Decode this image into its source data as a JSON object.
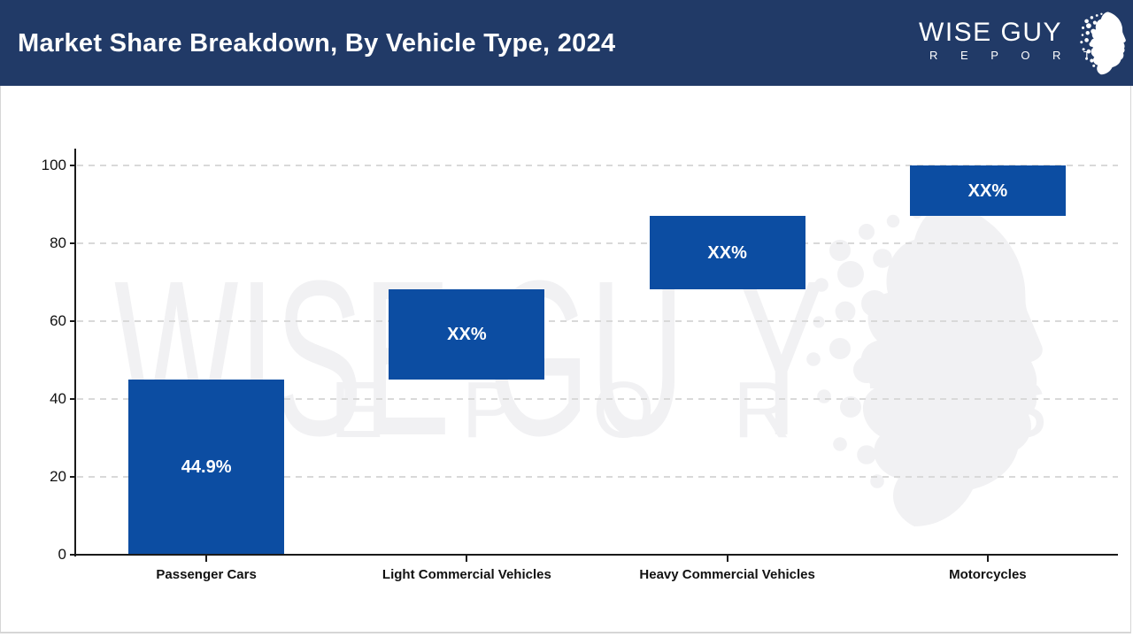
{
  "header": {
    "title": "Market Share Breakdown, By Vehicle Type, 2024",
    "logo": {
      "line1": "WISE GUY",
      "line2": "R E P O R T S"
    }
  },
  "watermark": {
    "line1_part1": "WISE GU",
    "line1_part2": "Y",
    "line2": "R E P O R T S"
  },
  "colors": {
    "header_bg": "#213a67",
    "bar": "#0c4da2",
    "bar_label": "#ffffff",
    "watermark": "#f1f1f3",
    "gridline": "#d9d9d9",
    "axis": "#1a1a1a"
  },
  "chart_data": {
    "type": "bar",
    "subtype": "waterfall",
    "title": "Market Share Breakdown, By Vehicle Type, 2024",
    "xlabel": "",
    "ylabel": "",
    "ylim": [
      0,
      100
    ],
    "yticks": [
      0,
      20,
      40,
      60,
      80,
      100
    ],
    "grid": "horizontal-dashed",
    "legend": "none",
    "categories": [
      "Passenger Cars",
      "Light Commercial Vehicles",
      "Heavy Commercial Vehicles",
      "Motorcycles"
    ],
    "segments": [
      {
        "category": "Passenger Cars",
        "start": 0,
        "end": 44.9,
        "label": "44.9%"
      },
      {
        "category": "Light Commercial Vehicles",
        "start": 44.9,
        "end": 68.2,
        "label": "XX%"
      },
      {
        "category": "Heavy Commercial Vehicles",
        "start": 68.2,
        "end": 87.0,
        "label": "XX%"
      },
      {
        "category": "Motorcycles",
        "start": 87.0,
        "end": 100.0,
        "label": "XX%"
      }
    ]
  }
}
